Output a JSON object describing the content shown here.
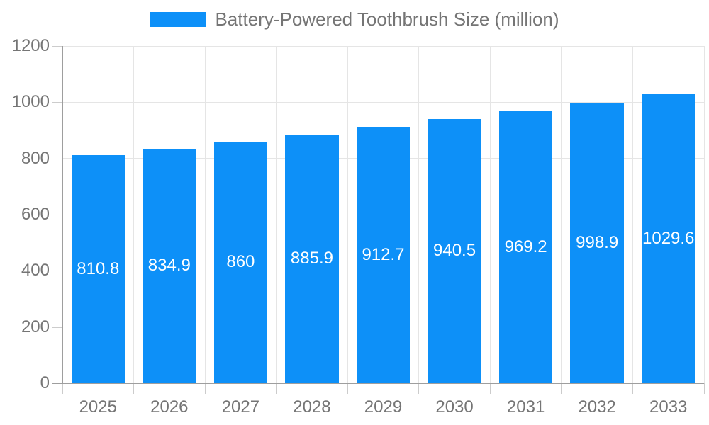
{
  "legend": {
    "label": "Battery-Powered Toothbrush Size (million)"
  },
  "colors": {
    "bar": "#0d90f8",
    "bar_label": "#ffffff",
    "grid_line": "#e5e5e5",
    "tick_line": "#cccccc",
    "axis_line": "#9e9e9e",
    "text": "#757575",
    "background": "#ffffff"
  },
  "chart_data": {
    "type": "bar",
    "categories": [
      "2025",
      "2026",
      "2027",
      "2028",
      "2029",
      "2030",
      "2031",
      "2032",
      "2033"
    ],
    "series": [
      {
        "name": "Battery-Powered Toothbrush Size (million)",
        "values": [
          810.8,
          834.9,
          860,
          885.9,
          912.7,
          940.5,
          969.2,
          998.9,
          1029.6
        ]
      }
    ],
    "value_labels": [
      "810.8",
      "834.9",
      "860",
      "885.9",
      "912.7",
      "940.5",
      "969.2",
      "998.9",
      "1029.6"
    ],
    "xlabel": "",
    "ylabel": "",
    "ylim": [
      0,
      1200
    ],
    "yticks": [
      0,
      200,
      400,
      600,
      800,
      1000,
      1200
    ],
    "grid": true,
    "legend_position": "top",
    "value_label_position": "inside-center"
  }
}
